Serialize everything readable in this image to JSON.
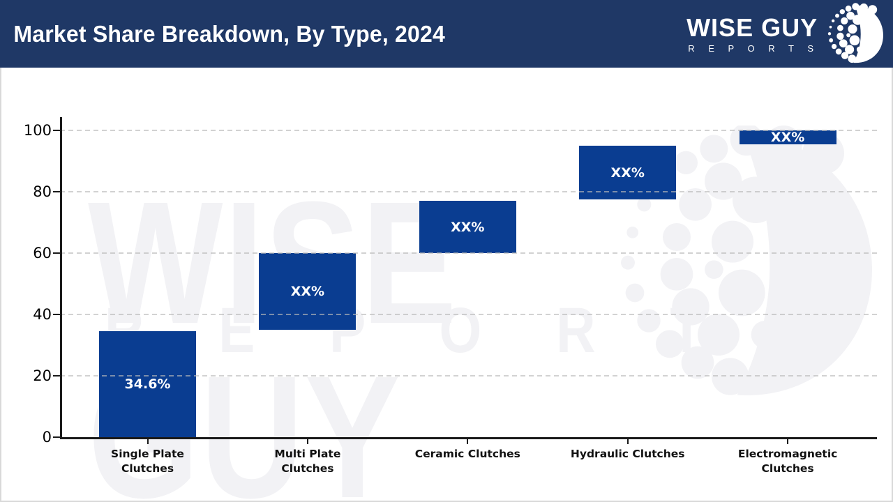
{
  "header": {
    "title": "Market Share Breakdown, By Type, 2024",
    "logo": {
      "name": "WISE GUY",
      "sub": "R E P O R T S"
    }
  },
  "watermark": {
    "name": "WISE GUY",
    "sub": "R E P O R T S"
  },
  "colors": {
    "header_bg": "#1f3866",
    "bar": "#0a3d91",
    "bar_label_text": "#ffffff",
    "gridline": "#bdbdbd",
    "axis": "#1a1a1a",
    "watermark": "#f2f2f5"
  },
  "chart_data": {
    "type": "bar",
    "variant": "waterfall",
    "title": "Market Share Breakdown, By Type, 2024",
    "categories": [
      "Single Plate\nClutches",
      "Multi Plate\nClutches",
      "Ceramic Clutches",
      "Hydraulic Clutches",
      "Electromagnetic\nClutches"
    ],
    "segments": [
      {
        "category": "Single Plate Clutches",
        "start": 0,
        "end": 34.6,
        "label": "34.6%"
      },
      {
        "category": "Multi Plate Clutches",
        "start": 35,
        "end": 60,
        "label": "XX%"
      },
      {
        "category": "Ceramic Clutches",
        "start": 60,
        "end": 77,
        "label": "XX%"
      },
      {
        "category": "Hydraulic Clutches",
        "start": 77.5,
        "end": 95,
        "label": "XX%"
      },
      {
        "category": "Electromagnetic Clutches",
        "start": 95.5,
        "end": 100,
        "label": "XX%"
      }
    ],
    "yticks": [
      0,
      20,
      40,
      60,
      80,
      100
    ],
    "ylim": [
      0,
      104.5
    ],
    "grid": "dashed-horizontal",
    "legend": "none",
    "bar_color": "#0a3d91"
  }
}
